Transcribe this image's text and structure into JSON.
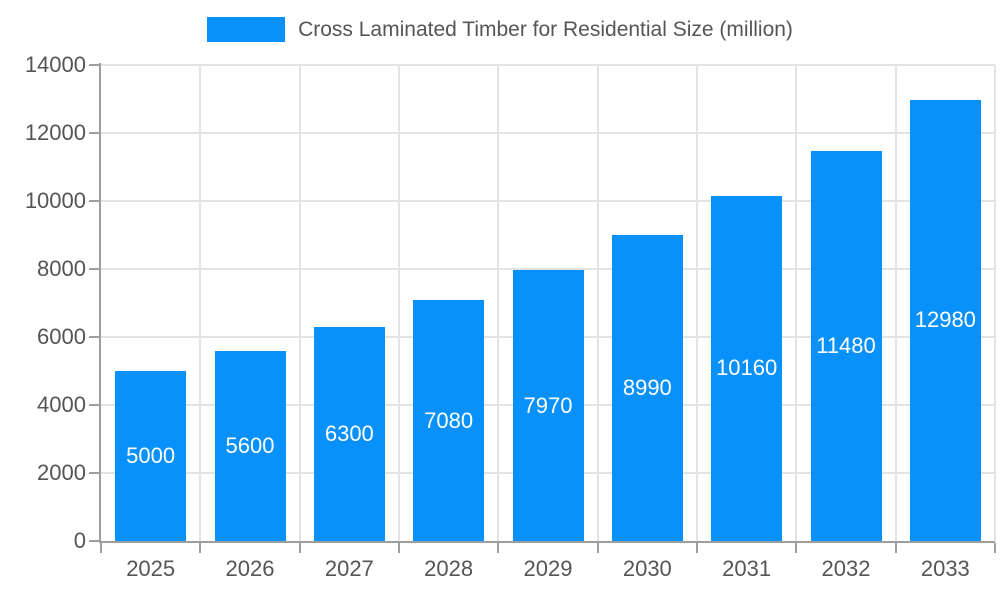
{
  "legend": {
    "label": "Cross Laminated Timber for Residential Size (million)",
    "swatch_color": "#0890fb"
  },
  "chart_data": {
    "type": "bar",
    "title": "Cross Laminated Timber for Residential Size (million)",
    "series": [
      {
        "name": "Cross Laminated Timber for Residential Size (million)",
        "values": [
          5000,
          5600,
          6300,
          7080,
          7970,
          8990,
          10160,
          11480,
          12980
        ]
      }
    ],
    "categories": [
      "2025",
      "2026",
      "2027",
      "2028",
      "2029",
      "2030",
      "2031",
      "2032",
      "2033"
    ],
    "xlabel": "",
    "ylabel": "",
    "ylim": [
      0,
      14000
    ],
    "yticks": [
      0,
      2000,
      4000,
      6000,
      8000,
      10000,
      12000,
      14000
    ],
    "grid": true,
    "legend_position": "top",
    "bar_color": "#0890fb",
    "bar_label_color": "#ffffff",
    "grid_color": "#e3e3e3",
    "axis_color": "#9e9e9e",
    "text_color": "#555555",
    "background_color": "#ffffff"
  }
}
